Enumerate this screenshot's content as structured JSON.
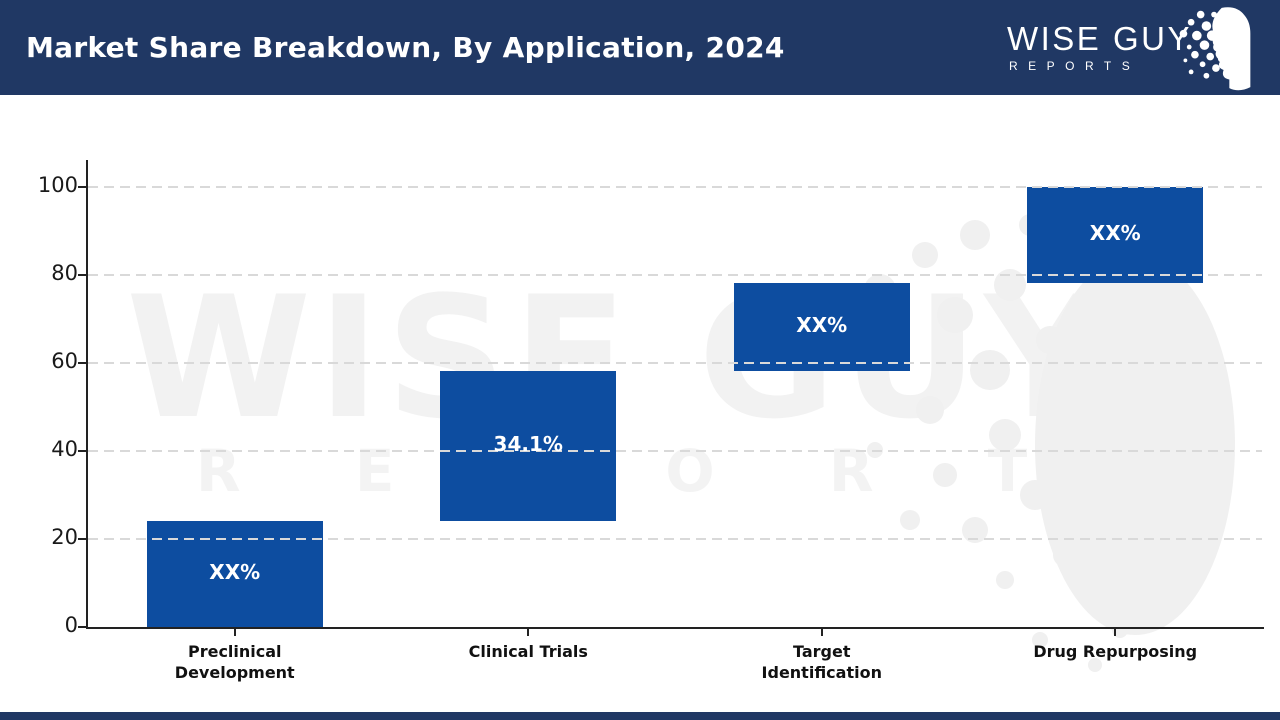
{
  "header": {
    "title": "Market Share Breakdown, By Application, 2024",
    "logo": {
      "wordmark": "WISE GUY",
      "sub": "REPORTS"
    }
  },
  "watermark": {
    "wordmark": "WISE GUY",
    "sub": "R E P O R T S"
  },
  "chart_data": {
    "type": "bar",
    "variant": "floating-waterfall",
    "title": "Market Share Breakdown, By Application, 2024",
    "categories": [
      "Preclinical\nDevelopment",
      "Clinical Trials",
      "Target\nIdentification",
      "Drug Repurposing"
    ],
    "bars": [
      {
        "category": "Preclinical Development",
        "label": "XX%",
        "start": 0,
        "end": 24
      },
      {
        "category": "Clinical Trials",
        "label": "34.1%",
        "start": 24,
        "end": 58.1
      },
      {
        "category": "Target Identification",
        "label": "XX%",
        "start": 58.1,
        "end": 78.2
      },
      {
        "category": "Drug Repurposing",
        "label": "XX%",
        "start": 78.2,
        "end": 100
      }
    ],
    "xlabel": "",
    "ylabel": "",
    "ylim": [
      0,
      106
    ],
    "yticks": [
      0,
      20,
      40,
      60,
      80,
      100
    ],
    "grid": "horizontal-dashed",
    "legend": "none"
  },
  "colors": {
    "header_bg": "#203864",
    "footer_bg": "#203864",
    "bar": "#0d4da0",
    "axis": "#222222",
    "grid": "#d9d9d9",
    "bar_label": "#ffffff",
    "tick_label": "#1a1a1a",
    "watermark": "#f2f2f2"
  }
}
